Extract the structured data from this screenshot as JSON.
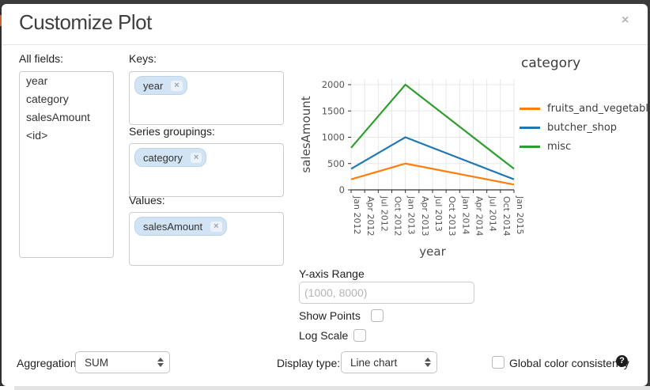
{
  "dialog": {
    "title": "Customize Plot",
    "close_glyph": "×"
  },
  "fields_panel": {
    "label": "All fields:",
    "items": [
      "year",
      "category",
      "salesAmount",
      "<id>"
    ]
  },
  "selectors": [
    {
      "label": "Keys:",
      "tags": [
        {
          "text": "year",
          "remove_glyph": "×"
        }
      ]
    },
    {
      "label": "Series groupings:",
      "tags": [
        {
          "text": "category",
          "remove_glyph": "×"
        }
      ]
    },
    {
      "label": "Values:",
      "tags": [
        {
          "text": "salesAmount",
          "remove_glyph": "×"
        }
      ]
    }
  ],
  "chart_data": {
    "type": "line",
    "xlabel": "year",
    "ylabel": "salesAmount",
    "legend_title": "category",
    "legend_position": "right",
    "grid": true,
    "categories": [
      "Jan 2012",
      "Apr 2012",
      "Jul 2012",
      "Oct 2012",
      "Jan 2013",
      "Apr 2013",
      "Jul 2013",
      "Oct 2013",
      "Jan 2014",
      "Apr 2014",
      "Jul 2014",
      "Oct 2014",
      "Jan 2015"
    ],
    "x_indices": [
      0,
      4,
      12
    ],
    "x_points": [
      "Jan 2012",
      "Jan 2013",
      "Jan 2015"
    ],
    "series": [
      {
        "name": "fruits_and_vegetables",
        "color": "#ff7f0e",
        "values": [
          200,
          500,
          100
        ]
      },
      {
        "name": "butcher_shop",
        "color": "#1f77b4",
        "values": [
          400,
          1000,
          200
        ]
      },
      {
        "name": "misc",
        "color": "#2ca02c",
        "values": [
          800,
          2000,
          400
        ]
      }
    ],
    "y_ticks": [
      0,
      500,
      1000,
      1500,
      2000
    ],
    "ylim": [
      0,
      2100
    ]
  },
  "y_axis_range": {
    "label": "Y-axis Range",
    "placeholder": "(1000, 8000)",
    "value": ""
  },
  "options": {
    "show_points": {
      "label": "Show Points",
      "checked": false
    },
    "log_scale": {
      "label": "Log Scale",
      "checked": false
    },
    "global_color": {
      "label": "Global color consistency",
      "checked": false,
      "help_glyph": "?"
    }
  },
  "footer": {
    "aggregation_label": "Aggregation:",
    "aggregation_value": "SUM",
    "display_type_label": "Display type:",
    "display_type_value": "Line chart"
  }
}
